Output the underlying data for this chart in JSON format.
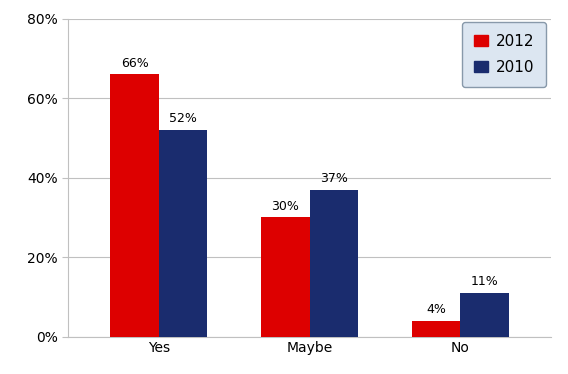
{
  "categories": [
    "Yes",
    "Maybe",
    "No"
  ],
  "values_2012": [
    0.66,
    0.3,
    0.04
  ],
  "values_2010": [
    0.52,
    0.37,
    0.11
  ],
  "labels_2012": [
    "66%",
    "30%",
    "4%"
  ],
  "labels_2010": [
    "52%",
    "37%",
    "11%"
  ],
  "color_2012": "#dd0000",
  "color_2010": "#1a2c6e",
  "legend_labels": [
    "2012",
    "2010"
  ],
  "ylim": [
    0,
    0.8
  ],
  "yticks": [
    0.0,
    0.2,
    0.4,
    0.6,
    0.8
  ],
  "ytick_labels": [
    "0%",
    "20%",
    "40%",
    "60%",
    "80%"
  ],
  "bar_width": 0.32,
  "legend_facecolor": "#dce6f1",
  "legend_edgecolor": "#8899aa",
  "label_fontsize": 9,
  "tick_fontsize": 10,
  "legend_fontsize": 11
}
